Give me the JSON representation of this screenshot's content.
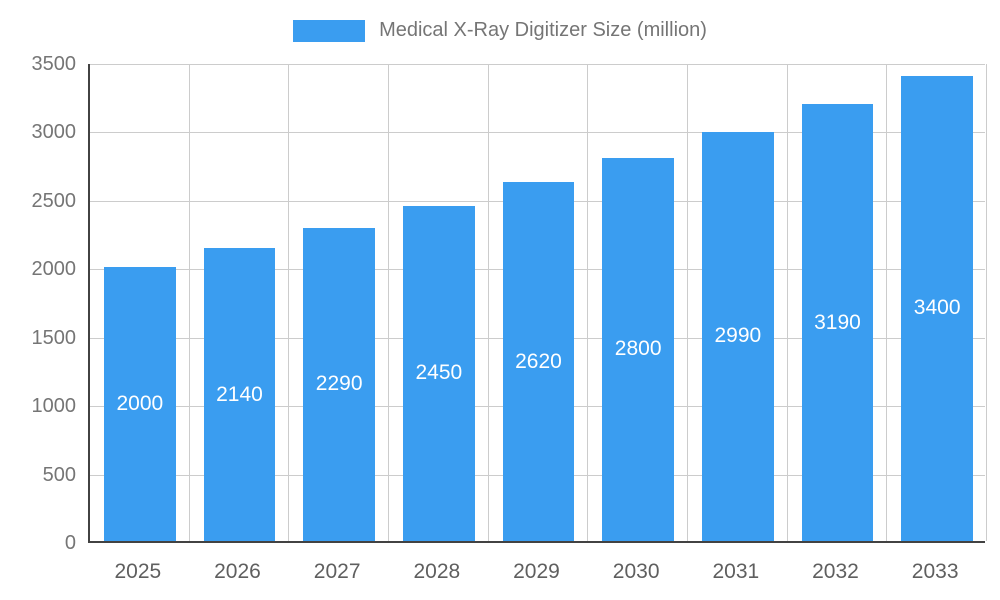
{
  "legend": {
    "label": "Medical X-Ray Digitizer Size (million)"
  },
  "chart_data": {
    "type": "bar",
    "title": "Medical X-Ray Digitizer Size (million)",
    "categories": [
      "2025",
      "2026",
      "2027",
      "2028",
      "2029",
      "2030",
      "2031",
      "2032",
      "2033"
    ],
    "values": [
      2000,
      2140,
      2290,
      2450,
      2620,
      2800,
      2990,
      3190,
      3400
    ],
    "xlabel": "",
    "ylabel": "",
    "ylim": [
      0,
      3500
    ],
    "ytick_step": 500,
    "grid": true,
    "legend_position": "top",
    "bar_color": "#3A9DF0",
    "value_label_color": "#ffffff",
    "gridline_color": "#cccccc",
    "axis_color": "#424242"
  }
}
